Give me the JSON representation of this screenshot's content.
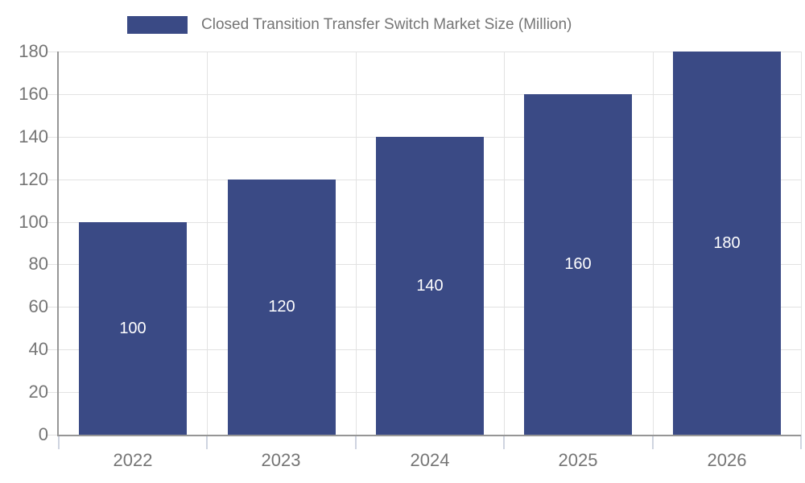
{
  "legend": {
    "items": [
      {
        "label": "Closed Transition Transfer Switch Market Size (Million)",
        "color": "#3A4A85"
      }
    ]
  },
  "chart_data": {
    "type": "bar",
    "title": "Closed Transition Transfer Switch Market Size (Million)",
    "categories": [
      "2022",
      "2023",
      "2024",
      "2025",
      "2026"
    ],
    "values": [
      100,
      120,
      140,
      160,
      180
    ],
    "value_labels": [
      "100",
      "120",
      "140",
      "160",
      "180"
    ],
    "xlabel": "",
    "ylabel": "",
    "ylim": [
      0,
      180
    ],
    "yticks": [
      0,
      20,
      40,
      60,
      80,
      100,
      120,
      140,
      160,
      180
    ],
    "grid": true,
    "legend_position": "top",
    "colors": {
      "bar": "#3A4A85",
      "value_label": "#FFFFFF",
      "axis_text": "#757575",
      "axis_line": "#969696",
      "gridline": "#E2E2E2",
      "tick": "#CFD4E0",
      "background": "#FFFFFF"
    }
  }
}
